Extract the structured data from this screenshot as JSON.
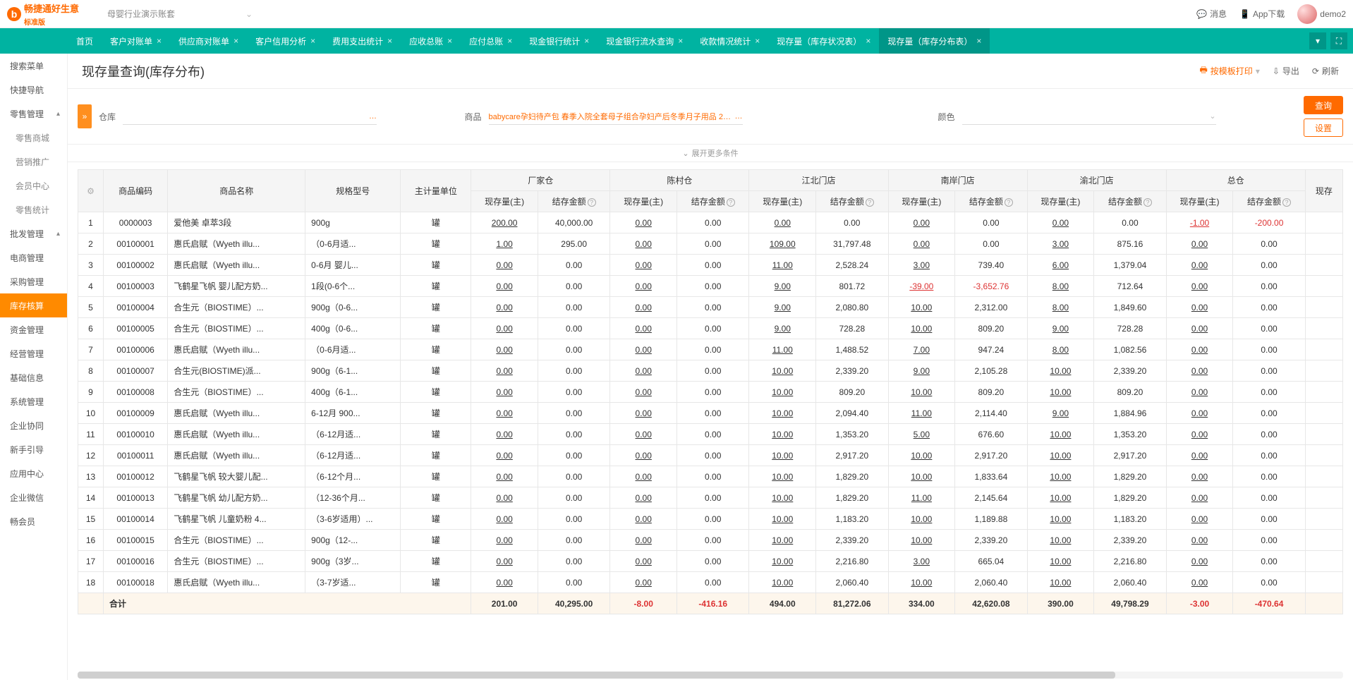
{
  "brand": {
    "name": "畅捷通好生意",
    "edition": "标准版"
  },
  "org": {
    "name": "母婴行业演示账套"
  },
  "topRight": {
    "msg": "消息",
    "app": "App下载",
    "user": "demo2"
  },
  "tabs": [
    {
      "label": "首页",
      "close": false
    },
    {
      "label": "客户对账单",
      "close": true
    },
    {
      "label": "供应商对账单",
      "close": true
    },
    {
      "label": "客户信用分析",
      "close": true
    },
    {
      "label": "费用支出统计",
      "close": true
    },
    {
      "label": "应收总账",
      "close": true
    },
    {
      "label": "应付总账",
      "close": true
    },
    {
      "label": "现金银行统计",
      "close": true
    },
    {
      "label": "现金银行流水查询",
      "close": true
    },
    {
      "label": "收款情况统计",
      "close": true
    },
    {
      "label": "现存量（库存状况表）",
      "close": true
    },
    {
      "label": "现存量（库存分布表）",
      "close": true,
      "active": true
    }
  ],
  "sidebar": {
    "top": [
      "搜索菜单",
      "快捷导航"
    ],
    "groups": [
      {
        "label": "零售管理",
        "open": true,
        "items": [
          "零售商城",
          "营销推广",
          "会员中心",
          "零售统计"
        ]
      },
      {
        "label": "批发管理",
        "open": true,
        "items": []
      }
    ],
    "rest": [
      "电商管理",
      "采购管理",
      "库存核算",
      "资金管理",
      "经营管理",
      "基础信息",
      "系统管理",
      "企业协同",
      "新手引导",
      "应用中心",
      "企业微信",
      "畅会员"
    ],
    "active": "库存核算"
  },
  "page": {
    "title": "现存量查询(库存分布)",
    "actions": {
      "print": "按模板打印",
      "export": "导出",
      "refresh": "刷新"
    }
  },
  "filter": {
    "warehouse": {
      "label": "仓库",
      "value": ""
    },
    "product": {
      "label": "商品",
      "value": "babycare孕妇待产包 春季入院全套母子组合孕妇产后冬季月子用品 22件套 >…"
    },
    "color": {
      "label": "颜色",
      "value": ""
    },
    "search": "查询",
    "setting": "设置",
    "expand": "展开更多条件"
  },
  "columns": {
    "fixed": [
      "",
      "商品编码",
      "商品名称",
      "规格型号",
      "主计量单位"
    ],
    "groups": [
      "厂家仓",
      "陈村仓",
      "江北门店",
      "南岸门店",
      "渝北门店",
      "总仓"
    ],
    "sub": [
      "现存量(主)",
      "结存金额"
    ]
  },
  "rows": [
    {
      "n": 1,
      "code": "0000003",
      "name": "爱他美 卓萃3段",
      "spec": "900g",
      "unit": "罐",
      "v": [
        [
          "200.00",
          "40,000.00"
        ],
        [
          "0.00",
          "0.00"
        ],
        [
          "0.00",
          "0.00"
        ],
        [
          "0.00",
          "0.00"
        ],
        [
          "0.00",
          "0.00"
        ],
        [
          "-1.00",
          "-200.00"
        ]
      ],
      "neg": [
        [
          0,
          0
        ],
        [
          0,
          0
        ],
        [
          0,
          0
        ],
        [
          0,
          0
        ],
        [
          0,
          0
        ],
        [
          1,
          1
        ]
      ]
    },
    {
      "n": 2,
      "code": "00100001",
      "name": "惠氏启赋（Wyeth illu...",
      "spec": "（0-6月适...",
      "unit": "罐",
      "v": [
        [
          "1.00",
          "295.00"
        ],
        [
          "0.00",
          "0.00"
        ],
        [
          "109.00",
          "31,797.48"
        ],
        [
          "0.00",
          "0.00"
        ],
        [
          "3.00",
          "875.16"
        ],
        [
          "0.00",
          "0.00"
        ]
      ]
    },
    {
      "n": 3,
      "code": "00100002",
      "name": "惠氏启赋（Wyeth illu...",
      "spec": "0-6月 婴儿...",
      "unit": "罐",
      "v": [
        [
          "0.00",
          "0.00"
        ],
        [
          "0.00",
          "0.00"
        ],
        [
          "11.00",
          "2,528.24"
        ],
        [
          "3.00",
          "739.40"
        ],
        [
          "6.00",
          "1,379.04"
        ],
        [
          "0.00",
          "0.00"
        ]
      ]
    },
    {
      "n": 4,
      "code": "00100003",
      "name": "飞鹤星飞帆 婴儿配方奶...",
      "spec": "1段(0-6个...",
      "unit": "罐",
      "v": [
        [
          "0.00",
          "0.00"
        ],
        [
          "0.00",
          "0.00"
        ],
        [
          "9.00",
          "801.72"
        ],
        [
          "-39.00",
          "-3,652.76"
        ],
        [
          "8.00",
          "712.64"
        ],
        [
          "0.00",
          "0.00"
        ]
      ],
      "neg": [
        [
          0,
          0
        ],
        [
          0,
          0
        ],
        [
          0,
          0
        ],
        [
          1,
          1
        ],
        [
          0,
          0
        ],
        [
          0,
          0
        ]
      ]
    },
    {
      "n": 5,
      "code": "00100004",
      "name": "合生元（BIOSTIME）...",
      "spec": "900g（0-6...",
      "unit": "罐",
      "v": [
        [
          "0.00",
          "0.00"
        ],
        [
          "0.00",
          "0.00"
        ],
        [
          "9.00",
          "2,080.80"
        ],
        [
          "10.00",
          "2,312.00"
        ],
        [
          "8.00",
          "1,849.60"
        ],
        [
          "0.00",
          "0.00"
        ]
      ]
    },
    {
      "n": 6,
      "code": "00100005",
      "name": "合生元（BIOSTIME）...",
      "spec": "400g（0-6...",
      "unit": "罐",
      "v": [
        [
          "0.00",
          "0.00"
        ],
        [
          "0.00",
          "0.00"
        ],
        [
          "9.00",
          "728.28"
        ],
        [
          "10.00",
          "809.20"
        ],
        [
          "9.00",
          "728.28"
        ],
        [
          "0.00",
          "0.00"
        ]
      ]
    },
    {
      "n": 7,
      "code": "00100006",
      "name": "惠氏启赋（Wyeth illu...",
      "spec": "（0-6月适...",
      "unit": "罐",
      "v": [
        [
          "0.00",
          "0.00"
        ],
        [
          "0.00",
          "0.00"
        ],
        [
          "11.00",
          "1,488.52"
        ],
        [
          "7.00",
          "947.24"
        ],
        [
          "8.00",
          "1,082.56"
        ],
        [
          "0.00",
          "0.00"
        ]
      ]
    },
    {
      "n": 8,
      "code": "00100007",
      "name": "合生元(BIOSTIME)派...",
      "spec": "900g（6-1...",
      "unit": "罐",
      "v": [
        [
          "0.00",
          "0.00"
        ],
        [
          "0.00",
          "0.00"
        ],
        [
          "10.00",
          "2,339.20"
        ],
        [
          "9.00",
          "2,105.28"
        ],
        [
          "10.00",
          "2,339.20"
        ],
        [
          "0.00",
          "0.00"
        ]
      ]
    },
    {
      "n": 9,
      "code": "00100008",
      "name": "合生元（BIOSTIME）...",
      "spec": "400g（6-1...",
      "unit": "罐",
      "v": [
        [
          "0.00",
          "0.00"
        ],
        [
          "0.00",
          "0.00"
        ],
        [
          "10.00",
          "809.20"
        ],
        [
          "10.00",
          "809.20"
        ],
        [
          "10.00",
          "809.20"
        ],
        [
          "0.00",
          "0.00"
        ]
      ]
    },
    {
      "n": 10,
      "code": "00100009",
      "name": "惠氏启赋（Wyeth illu...",
      "spec": "6-12月 900...",
      "unit": "罐",
      "v": [
        [
          "0.00",
          "0.00"
        ],
        [
          "0.00",
          "0.00"
        ],
        [
          "10.00",
          "2,094.40"
        ],
        [
          "11.00",
          "2,114.40"
        ],
        [
          "9.00",
          "1,884.96"
        ],
        [
          "0.00",
          "0.00"
        ]
      ]
    },
    {
      "n": 11,
      "code": "00100010",
      "name": "惠氏启赋（Wyeth illu...",
      "spec": "（6-12月适...",
      "unit": "罐",
      "v": [
        [
          "0.00",
          "0.00"
        ],
        [
          "0.00",
          "0.00"
        ],
        [
          "10.00",
          "1,353.20"
        ],
        [
          "5.00",
          "676.60"
        ],
        [
          "10.00",
          "1,353.20"
        ],
        [
          "0.00",
          "0.00"
        ]
      ]
    },
    {
      "n": 12,
      "code": "00100011",
      "name": "惠氏启赋（Wyeth illu...",
      "spec": "（6-12月适...",
      "unit": "罐",
      "v": [
        [
          "0.00",
          "0.00"
        ],
        [
          "0.00",
          "0.00"
        ],
        [
          "10.00",
          "2,917.20"
        ],
        [
          "10.00",
          "2,917.20"
        ],
        [
          "10.00",
          "2,917.20"
        ],
        [
          "0.00",
          "0.00"
        ]
      ]
    },
    {
      "n": 13,
      "code": "00100012",
      "name": "飞鹤星飞帆 较大婴儿配...",
      "spec": "（6-12个月...",
      "unit": "罐",
      "v": [
        [
          "0.00",
          "0.00"
        ],
        [
          "0.00",
          "0.00"
        ],
        [
          "10.00",
          "1,829.20"
        ],
        [
          "10.00",
          "1,833.64"
        ],
        [
          "10.00",
          "1,829.20"
        ],
        [
          "0.00",
          "0.00"
        ]
      ]
    },
    {
      "n": 14,
      "code": "00100013",
      "name": "飞鹤星飞帆 幼儿配方奶...",
      "spec": "（12-36个月...",
      "unit": "罐",
      "v": [
        [
          "0.00",
          "0.00"
        ],
        [
          "0.00",
          "0.00"
        ],
        [
          "10.00",
          "1,829.20"
        ],
        [
          "11.00",
          "2,145.64"
        ],
        [
          "10.00",
          "1,829.20"
        ],
        [
          "0.00",
          "0.00"
        ]
      ]
    },
    {
      "n": 15,
      "code": "00100014",
      "name": "飞鹤星飞帆 儿童奶粉 4...",
      "spec": "（3-6岁适用）...",
      "unit": "罐",
      "v": [
        [
          "0.00",
          "0.00"
        ],
        [
          "0.00",
          "0.00"
        ],
        [
          "10.00",
          "1,183.20"
        ],
        [
          "10.00",
          "1,189.88"
        ],
        [
          "10.00",
          "1,183.20"
        ],
        [
          "0.00",
          "0.00"
        ]
      ]
    },
    {
      "n": 16,
      "code": "00100015",
      "name": "合生元（BIOSTIME）...",
      "spec": "900g（12-...",
      "unit": "罐",
      "v": [
        [
          "0.00",
          "0.00"
        ],
        [
          "0.00",
          "0.00"
        ],
        [
          "10.00",
          "2,339.20"
        ],
        [
          "10.00",
          "2,339.20"
        ],
        [
          "10.00",
          "2,339.20"
        ],
        [
          "0.00",
          "0.00"
        ]
      ]
    },
    {
      "n": 17,
      "code": "00100016",
      "name": "合生元（BIOSTIME）...",
      "spec": "900g（3岁...",
      "unit": "罐",
      "v": [
        [
          "0.00",
          "0.00"
        ],
        [
          "0.00",
          "0.00"
        ],
        [
          "10.00",
          "2,216.80"
        ],
        [
          "3.00",
          "665.04"
        ],
        [
          "10.00",
          "2,216.80"
        ],
        [
          "0.00",
          "0.00"
        ]
      ]
    },
    {
      "n": 18,
      "code": "00100018",
      "name": "惠氏启赋（Wyeth illu...",
      "spec": "（3-7岁适...",
      "unit": "罐",
      "v": [
        [
          "0.00",
          "0.00"
        ],
        [
          "0.00",
          "0.00"
        ],
        [
          "10.00",
          "2,060.40"
        ],
        [
          "10.00",
          "2,060.40"
        ],
        [
          "10.00",
          "2,060.40"
        ],
        [
          "0.00",
          "0.00"
        ]
      ]
    }
  ],
  "total": {
    "label": "合计",
    "v": [
      [
        "201.00",
        "40,295.00"
      ],
      [
        "-8.00",
        "-416.16"
      ],
      [
        "494.00",
        "81,272.06"
      ],
      [
        "334.00",
        "42,620.08"
      ],
      [
        "390.00",
        "49,798.29"
      ],
      [
        "-3.00",
        "-470.64"
      ]
    ],
    "neg": [
      [
        0,
        0
      ],
      [
        1,
        1
      ],
      [
        0,
        0
      ],
      [
        0,
        0
      ],
      [
        0,
        0
      ],
      [
        1,
        1
      ]
    ]
  },
  "extraCol": "现存"
}
